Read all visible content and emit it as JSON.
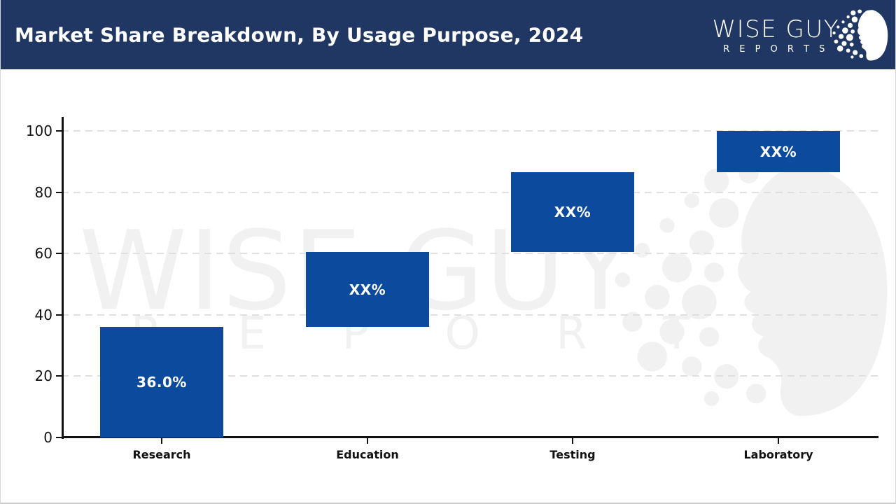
{
  "header": {
    "title": "Market Share Breakdown, By Usage Purpose, 2024",
    "logo": {
      "line1": "WISE GUY",
      "line2": "R E P O R T S",
      "face_icon": "dotted-head-profile"
    }
  },
  "watermark": {
    "line1": "WISE GUY",
    "line2": "R E P O R T S",
    "head_icon": "dotted-head-profile"
  },
  "colors": {
    "header_bg": "#203764",
    "bar": "#0c4a9e",
    "gridline": "#e0e0e0",
    "axis": "#121212",
    "value_label": "#ffffff",
    "watermark": "#f1f1f1"
  },
  "chart_data": {
    "type": "bar",
    "subtype": "waterfall",
    "title": "Market Share Breakdown, By Usage Purpose, 2024",
    "categories": [
      "Research",
      "Education",
      "Testing",
      "Laboratory"
    ],
    "segments": [
      {
        "category": "Research",
        "start": 0,
        "end": 36,
        "label": "36.0%"
      },
      {
        "category": "Education",
        "start": 36,
        "end": 60.5,
        "label": "XX%"
      },
      {
        "category": "Testing",
        "start": 60.5,
        "end": 86.5,
        "label": "XX%"
      },
      {
        "category": "Laboratory",
        "start": 86.5,
        "end": 100,
        "label": "XX%"
      }
    ],
    "yticks": [
      0,
      20,
      40,
      60,
      80,
      100
    ],
    "ylim": [
      0,
      104
    ],
    "xlabel": "",
    "ylabel": "",
    "grid": "horizontal-dashed",
    "legend": "none"
  }
}
